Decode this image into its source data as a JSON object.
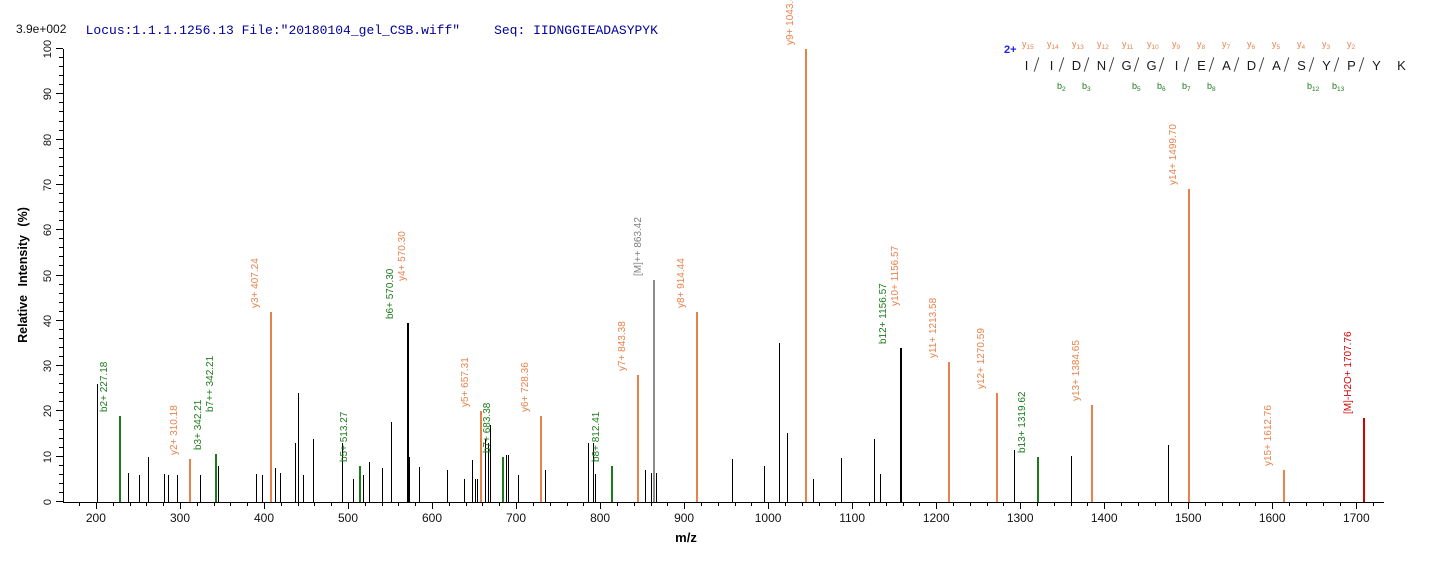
{
  "header": {
    "locus_file": "Locus:1.1.1.1256.13 File:\"20180104_gel_CSB.wiff\"",
    "seq_label": "Seq: IIDNGGIEADASYPYK"
  },
  "intensity_scale": "3.9e+002",
  "axes": {
    "y_title": "Relative Intensity (%)",
    "x_title": "m/z",
    "x_min": 162,
    "x_max": 1733,
    "x_major_ticks": [
      200,
      300,
      400,
      500,
      600,
      700,
      800,
      900,
      1000,
      1100,
      1200,
      1300,
      1400,
      1500,
      1600,
      1700
    ],
    "x_minor_step": 20,
    "x_minor_start": 180,
    "x_minor_end": 1720,
    "y_major_ticks": [
      0,
      10,
      20,
      30,
      40,
      50,
      60,
      70,
      80,
      90,
      100
    ],
    "y_minor_step": 2,
    "ylim": [
      0,
      100
    ]
  },
  "colors": {
    "fragment_b": "#1b7b1b",
    "fragment_y": "#e8824b",
    "unassigned": "#000000",
    "precursor": "#8c8c8c",
    "precursor_label": "#7f7f7f",
    "neutral_loss": "#d40000",
    "header_navy": "#000099",
    "charge_blue": "#2222dd"
  },
  "sequence": {
    "charge_label": "2+",
    "residues": [
      "I",
      "I",
      "D",
      "N",
      "G",
      "G",
      "I",
      "E",
      "A",
      "D",
      "A",
      "S",
      "Y",
      "P",
      "Y",
      "K"
    ],
    "y_ions": [
      {
        "n": 15,
        "boundary": 1
      },
      {
        "n": 14,
        "boundary": 2
      },
      {
        "n": 13,
        "boundary": 3
      },
      {
        "n": 12,
        "boundary": 4
      },
      {
        "n": 11,
        "boundary": 5
      },
      {
        "n": 10,
        "boundary": 6
      },
      {
        "n": 9,
        "boundary": 7
      },
      {
        "n": 8,
        "boundary": 8
      },
      {
        "n": 7,
        "boundary": 9
      },
      {
        "n": 6,
        "boundary": 10
      },
      {
        "n": 5,
        "boundary": 11
      },
      {
        "n": 4,
        "boundary": 12
      },
      {
        "n": 3,
        "boundary": 13
      },
      {
        "n": 2,
        "boundary": 14
      }
    ],
    "b_ions": [
      {
        "n": 2,
        "boundary": 2
      },
      {
        "n": 3,
        "boundary": 3
      },
      {
        "n": 5,
        "boundary": 5
      },
      {
        "n": 6,
        "boundary": 6
      },
      {
        "n": 7,
        "boundary": 7
      },
      {
        "n": 8,
        "boundary": 8
      },
      {
        "n": 12,
        "boundary": 12
      },
      {
        "n": 13,
        "boundary": 13
      }
    ]
  },
  "chart_data": {
    "type": "bar",
    "subtype": "ms2-spectrum",
    "xlabel": "m/z",
    "ylabel": "Relative Intensity (%)",
    "xlim": [
      162,
      1733
    ],
    "ylim": [
      0,
      100
    ],
    "intensity_scale": "3.9e+002",
    "peaks": [
      {
        "mz": 201,
        "pct": 26,
        "series": "unassigned"
      },
      {
        "mz": 227.18,
        "pct": 19,
        "series": "fragment-b",
        "labels": [
          {
            "text": "b2+ 227.18",
            "color": "b"
          }
        ]
      },
      {
        "mz": 238,
        "pct": 6.5,
        "series": "unassigned"
      },
      {
        "mz": 251,
        "pct": 6,
        "series": "unassigned"
      },
      {
        "mz": 262,
        "pct": 10,
        "series": "unassigned"
      },
      {
        "mz": 281,
        "pct": 6.3,
        "series": "unassigned"
      },
      {
        "mz": 286,
        "pct": 6,
        "series": "unassigned"
      },
      {
        "mz": 297,
        "pct": 6,
        "series": "unassigned"
      },
      {
        "mz": 310.18,
        "pct": 9.5,
        "series": "fragment-y",
        "labels": [
          {
            "text": "y2+ 310.18",
            "color": "y"
          }
        ]
      },
      {
        "mz": 324,
        "pct": 6,
        "series": "unassigned"
      },
      {
        "mz": 342.21,
        "pct": 10.5,
        "series": "fragment-b",
        "labels": [
          {
            "text": "b3+ 342.21",
            "color": "b"
          },
          {
            "text": "b7++ 342.21",
            "color": "b"
          }
        ]
      },
      {
        "mz": 345,
        "pct": 8,
        "series": "unassigned"
      },
      {
        "mz": 390,
        "pct": 6.3,
        "series": "unassigned"
      },
      {
        "mz": 397,
        "pct": 6,
        "series": "unassigned"
      },
      {
        "mz": 407.24,
        "pct": 42,
        "series": "fragment-y",
        "labels": [
          {
            "text": "y3+ 407.24",
            "color": "y"
          }
        ]
      },
      {
        "mz": 413,
        "pct": 7.5,
        "series": "unassigned"
      },
      {
        "mz": 419,
        "pct": 6.5,
        "series": "unassigned"
      },
      {
        "mz": 437,
        "pct": 13,
        "series": "unassigned"
      },
      {
        "mz": 440,
        "pct": 24,
        "series": "unassigned"
      },
      {
        "mz": 446,
        "pct": 6,
        "series": "unassigned"
      },
      {
        "mz": 458,
        "pct": 14,
        "series": "unassigned"
      },
      {
        "mz": 493,
        "pct": 13,
        "series": "unassigned"
      },
      {
        "mz": 506,
        "pct": 5,
        "series": "unassigned"
      },
      {
        "mz": 513.27,
        "pct": 8,
        "series": "fragment-b",
        "labels": [
          {
            "text": "b5+ 513.27",
            "color": "b"
          }
        ]
      },
      {
        "mz": 518,
        "pct": 6,
        "series": "unassigned"
      },
      {
        "mz": 525,
        "pct": 8.8,
        "series": "unassigned"
      },
      {
        "mz": 540,
        "pct": 7.5,
        "series": "unassigned"
      },
      {
        "mz": 551,
        "pct": 17.7,
        "series": "unassigned"
      },
      {
        "mz": 570.3,
        "pct": 39.5,
        "series": "unassigned",
        "labels": [
          {
            "text": "b6+ 570.30",
            "color": "b"
          },
          {
            "text": "y4+ 570.30",
            "color": "y"
          }
        ]
      },
      {
        "mz": 572,
        "pct": 10,
        "series": "unassigned"
      },
      {
        "mz": 584,
        "pct": 7.7,
        "series": "unassigned"
      },
      {
        "mz": 618,
        "pct": 7,
        "series": "unassigned"
      },
      {
        "mz": 638,
        "pct": 5,
        "series": "unassigned"
      },
      {
        "mz": 647,
        "pct": 9.3,
        "series": "unassigned"
      },
      {
        "mz": 651,
        "pct": 5,
        "series": "unassigned"
      },
      {
        "mz": 654,
        "pct": 5,
        "series": "unassigned"
      },
      {
        "mz": 657.31,
        "pct": 20,
        "series": "fragment-y",
        "labels": [
          {
            "text": "y5+ 657.31",
            "color": "y"
          }
        ]
      },
      {
        "mz": 663,
        "pct": 14,
        "series": "unassigned"
      },
      {
        "mz": 666,
        "pct": 13,
        "series": "unassigned"
      },
      {
        "mz": 669,
        "pct": 17,
        "series": "unassigned"
      },
      {
        "mz": 683.38,
        "pct": 10,
        "series": "fragment-b",
        "labels": [
          {
            "text": "b7+ 683.38",
            "color": "b"
          }
        ]
      },
      {
        "mz": 688,
        "pct": 10.4,
        "series": "unassigned"
      },
      {
        "mz": 690,
        "pct": 10.4,
        "series": "unassigned"
      },
      {
        "mz": 702,
        "pct": 6,
        "series": "unassigned"
      },
      {
        "mz": 728.36,
        "pct": 19,
        "series": "fragment-y",
        "labels": [
          {
            "text": "y6+ 728.36",
            "color": "y"
          }
        ]
      },
      {
        "mz": 734,
        "pct": 7,
        "series": "unassigned"
      },
      {
        "mz": 786,
        "pct": 13,
        "series": "unassigned"
      },
      {
        "mz": 792,
        "pct": 13,
        "series": "unassigned"
      },
      {
        "mz": 794,
        "pct": 6.2,
        "series": "unassigned"
      },
      {
        "mz": 812.41,
        "pct": 8,
        "series": "fragment-b",
        "labels": [
          {
            "text": "b8+ 812.41",
            "color": "b"
          }
        ]
      },
      {
        "mz": 843.38,
        "pct": 28,
        "series": "fragment-y",
        "labels": [
          {
            "text": "y7+ 843.38",
            "color": "y"
          }
        ]
      },
      {
        "mz": 853,
        "pct": 7,
        "series": "unassigned"
      },
      {
        "mz": 860,
        "pct": 6.5,
        "series": "unassigned"
      },
      {
        "mz": 863.42,
        "pct": 49,
        "series": "precursor",
        "labels": [
          {
            "text": "[M]++ 863.42",
            "color": "precursor"
          }
        ]
      },
      {
        "mz": 866,
        "pct": 6.5,
        "series": "unassigned"
      },
      {
        "mz": 914.44,
        "pct": 42,
        "series": "fragment-y",
        "labels": [
          {
            "text": "y8+ 914.44",
            "color": "y"
          }
        ]
      },
      {
        "mz": 957,
        "pct": 9.5,
        "series": "unassigned"
      },
      {
        "mz": 995,
        "pct": 8,
        "series": "unassigned"
      },
      {
        "mz": 1013,
        "pct": 35,
        "series": "unassigned"
      },
      {
        "mz": 1022,
        "pct": 15.2,
        "series": "unassigned"
      },
      {
        "mz": 1043.48,
        "pct": 100,
        "series": "fragment-y",
        "labels": [
          {
            "text": "y9+ 1043.48",
            "color": "y"
          }
        ]
      },
      {
        "mz": 1053,
        "pct": 5,
        "series": "unassigned"
      },
      {
        "mz": 1087,
        "pct": 9.7,
        "series": "unassigned"
      },
      {
        "mz": 1126,
        "pct": 14,
        "series": "unassigned"
      },
      {
        "mz": 1133,
        "pct": 6.2,
        "series": "unassigned"
      },
      {
        "mz": 1156.57,
        "pct": 34,
        "series": "unassigned",
        "labels": [
          {
            "text": "b12+ 1156.57",
            "color": "b"
          },
          {
            "text": "y10+ 1156.57",
            "color": "y"
          }
        ]
      },
      {
        "mz": 1213.58,
        "pct": 31,
        "series": "fragment-y",
        "labels": [
          {
            "text": "y11+ 1213.58",
            "color": "y"
          }
        ]
      },
      {
        "mz": 1270.59,
        "pct": 24,
        "series": "fragment-y",
        "labels": [
          {
            "text": "y12+ 1270.59",
            "color": "y"
          }
        ]
      },
      {
        "mz": 1293,
        "pct": 11.5,
        "series": "unassigned"
      },
      {
        "mz": 1319.62,
        "pct": 10,
        "series": "fragment-b",
        "labels": [
          {
            "text": "b13+ 1319.62",
            "color": "b"
          }
        ]
      },
      {
        "mz": 1361,
        "pct": 10.2,
        "series": "unassigned"
      },
      {
        "mz": 1384.65,
        "pct": 21.5,
        "series": "fragment-y",
        "labels": [
          {
            "text": "y13+ 1384.65",
            "color": "y"
          }
        ]
      },
      {
        "mz": 1476,
        "pct": 12.6,
        "series": "unassigned"
      },
      {
        "mz": 1499.7,
        "pct": 69,
        "series": "fragment-y",
        "labels": [
          {
            "text": "y14+ 1499.70",
            "color": "y"
          }
        ]
      },
      {
        "mz": 1612.76,
        "pct": 7,
        "series": "fragment-y",
        "labels": [
          {
            "text": "y15+ 1612.76",
            "color": "y"
          }
        ]
      },
      {
        "mz": 1707.76,
        "pct": 18.5,
        "series": "neutral-loss",
        "labels": [
          {
            "text": "[M]-H2O+ 1707.76",
            "color": "loss"
          }
        ]
      }
    ]
  }
}
